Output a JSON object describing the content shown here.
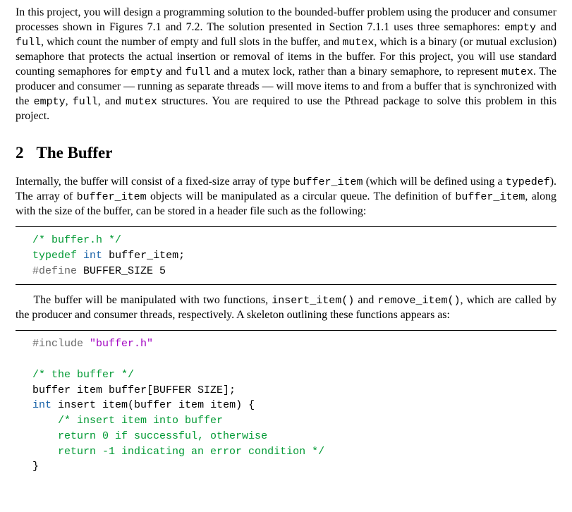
{
  "intro": {
    "text_parts": [
      "In this project, you will design a programming solution to the bounded-buffer problem using the producer and consumer processes shown in Figures 7.1 and 7.2. The solution presented in Section 7.1.1 uses three semaphores: ",
      " and ",
      ", which count the number of empty and full slots in the buffer, and ",
      ", which is a binary (or mutual exclusion) semaphore that protects the actual insertion or removal of items in the buffer. For this project, you will use standard counting semaphores for ",
      " and ",
      " and a mutex lock, rather than a binary semaphore, to represent ",
      ". The producer and consumer — running as separate threads — will move items to and from a buffer that is synchronized with the ",
      ", ",
      ", and ",
      " structures. You are required to use the Pthread package to solve this problem in this project."
    ],
    "codes": [
      "empty",
      "full",
      "mutex",
      "empty",
      "full",
      "mutex",
      "empty",
      "full",
      "mutex"
    ]
  },
  "section2": {
    "number": "2",
    "title": "The Buffer",
    "para1_parts": [
      "Internally, the buffer will consist of a fixed-size array of type ",
      " (which will be defined using a ",
      "). The array of ",
      " objects will be manipulated as a circular queue. The definition of ",
      ", along with the size of the buffer, can be stored in a header file such as the following:"
    ],
    "para1_codes": [
      "buffer_item",
      "typedef",
      "buffer_item",
      "buffer_item"
    ],
    "code1": {
      "l1": "/* buffer.h */",
      "l2a": "typedef",
      "l2b": "int",
      "l2c": "buffer_item;",
      "l3a": "#define",
      "l3b": "BUFFER_SIZE 5"
    },
    "para2_parts": [
      "The buffer will be manipulated with two functions, ",
      " and ",
      ", which are called by the producer and consumer threads, respectively. A skeleton outlining these functions appears as:"
    ],
    "para2_codes": [
      "insert_item()",
      "remove_item()"
    ],
    "code2": {
      "l1a": "#include",
      "l1b": "\"buffer.h\"",
      "l3": "/* the buffer */",
      "l4": "buffer item buffer[BUFFER SIZE];",
      "l5a": "int",
      "l5b": "insert item(buffer item item) {",
      "l6": "/* insert item into buffer",
      "l7": "return 0 if successful, otherwise",
      "l8": "return -1 indicating an error condition */",
      "l9": "}"
    }
  },
  "colors": {
    "comment": "#009933",
    "keyword": "#009933",
    "type": "#1a63a8",
    "macro": "#666666",
    "string": "#a000c0",
    "text": "#000000",
    "background": "#ffffff",
    "rule": "#000000"
  },
  "fonts": {
    "body": "Times New Roman",
    "body_size_pt": 12,
    "mono": "Courier New",
    "mono_size_pt": 11,
    "heading_size_pt": 17
  }
}
